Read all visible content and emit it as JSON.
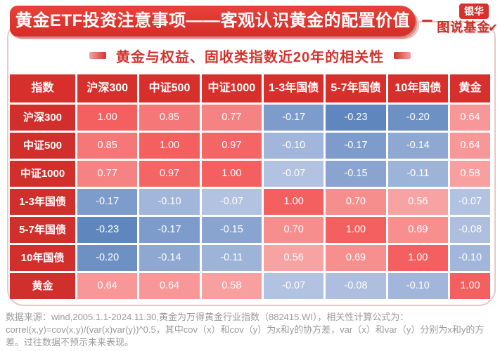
{
  "header": {
    "title": "黄金ETF投资注意事项——客观认识黄金的配置价值",
    "logo": {
      "top": "银华",
      "bottom": "图说基金",
      "check": "✔"
    }
  },
  "subtitle": {
    "text": "黄金与权益、固收类指数近20年的相关性"
  },
  "chart_data": {
    "type": "heatmap",
    "title": "黄金与权益、固收类指数近20年的相关性",
    "columns": [
      "指数",
      "沪深300",
      "中证500",
      "中证1000",
      "1-3年国债",
      "5-7年国债",
      "10年国债",
      "黄金"
    ],
    "rows": [
      {
        "label": "沪深300",
        "values": [
          1.0,
          0.85,
          0.77,
          -0.17,
          -0.23,
          -0.2,
          0.64
        ]
      },
      {
        "label": "中证500",
        "values": [
          0.85,
          1.0,
          0.97,
          -0.1,
          -0.17,
          -0.14,
          0.64
        ]
      },
      {
        "label": "中证1000",
        "values": [
          0.77,
          0.97,
          1.0,
          -0.07,
          -0.15,
          -0.11,
          0.58
        ]
      },
      {
        "label": "1-3年国债",
        "values": [
          -0.17,
          -0.1,
          -0.07,
          1.0,
          0.7,
          0.56,
          -0.07
        ]
      },
      {
        "label": "5-7年国债",
        "values": [
          -0.23,
          -0.17,
          -0.15,
          0.7,
          1.0,
          0.69,
          -0.08
        ]
      },
      {
        "label": "10年国债",
        "values": [
          -0.2,
          -0.14,
          -0.11,
          0.56,
          0.69,
          1.0,
          -0.1
        ]
      },
      {
        "label": "黄金",
        "values": [
          0.64,
          0.64,
          0.58,
          -0.07,
          -0.08,
          -0.1,
          1.0
        ]
      }
    ],
    "value_decimals": 2,
    "legend_position": "none",
    "grid": false,
    "scale": {
      "positive_low": "#f9b4b4",
      "positive_high": "#f46060",
      "negative_low": "#bcc9e6",
      "negative_high": "#5f86bd",
      "header_bg": "#d7302c",
      "header_text": "#ffffff",
      "accent_red": "#d5322e"
    }
  },
  "footer": {
    "text": "数据来源：wind,2005.1.1-2024.11.30,黄金为万得黄金行业指数（882415.WI），相关性计算公式为：correl(x,y)=cov(x,y)/(var(x)var(y))^0.5，其中cov（x）和cov（y）为x和y的协方差，var（x）和var（y）分别为x和y的方差。过往数据不预示未来表现。"
  }
}
